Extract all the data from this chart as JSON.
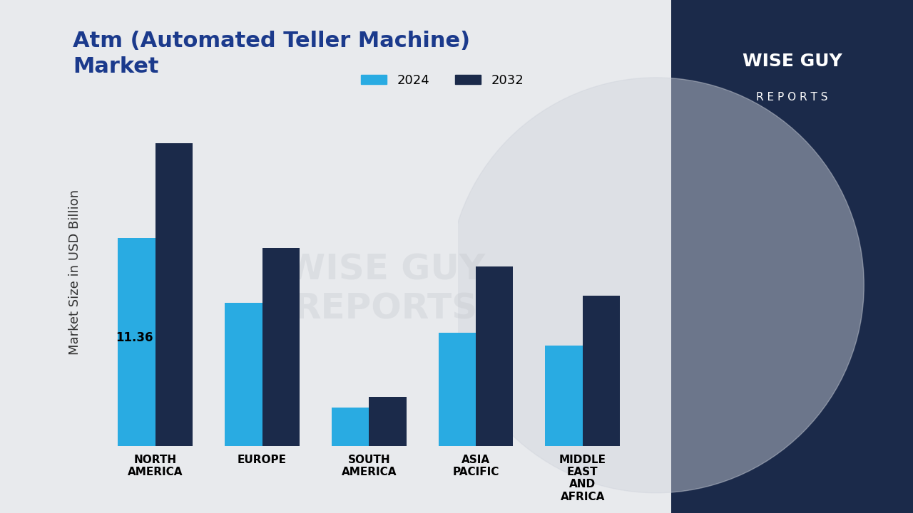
{
  "title": "Atm (Automated Teller Machine)\nMarket",
  "ylabel": "Market Size in USD Billion",
  "categories": [
    "NORTH\nAMERICA",
    "EUROPE",
    "SOUTH\nAMERICA",
    "ASIA\nPACIFIC",
    "MIDDLE\nEAST\nAND\nAFRICA"
  ],
  "values_2024": [
    11.36,
    7.8,
    2.1,
    6.2,
    5.5
  ],
  "values_2032": [
    16.5,
    10.8,
    2.7,
    9.8,
    8.2
  ],
  "color_2024": "#29ABE2",
  "color_2032": "#1B2A4A",
  "label_2024": "2024",
  "label_2032": "2032",
  "annotation_value": "11.36",
  "annotation_bar": 0,
  "bg_color": "#E8EAED",
  "right_panel_color": "#1B2A4A",
  "title_color": "#1B3A8C",
  "axis_label_color": "#333333",
  "tick_label_color": "#000000",
  "bar_width": 0.35,
  "ylim": [
    0,
    19
  ],
  "legend_fontsize": 13,
  "title_fontsize": 22,
  "ylabel_fontsize": 13
}
